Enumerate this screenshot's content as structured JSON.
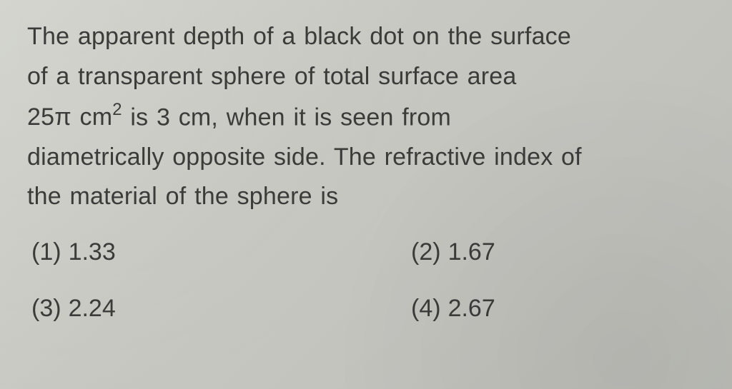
{
  "question": {
    "line1": "The apparent depth of a black dot on the surface",
    "line2": "of a transparent sphere of total surface area",
    "formula_area": "25π cm",
    "formula_exp": "2",
    "line3_rest": " is  3  cm,  when  it  is  seen  from",
    "line4": "diametrically opposite side. The refractive index of",
    "line5": "the material of the sphere is"
  },
  "options": [
    {
      "num": "(1)",
      "val": "1.33"
    },
    {
      "num": "(2)",
      "val": "1.67"
    },
    {
      "num": "(3)",
      "val": "2.24"
    },
    {
      "num": "(4)",
      "val": "2.67"
    }
  ],
  "style": {
    "text_color": "#3b3b3a",
    "bg_color": "#cdcec8",
    "font_size_pt": 26
  }
}
